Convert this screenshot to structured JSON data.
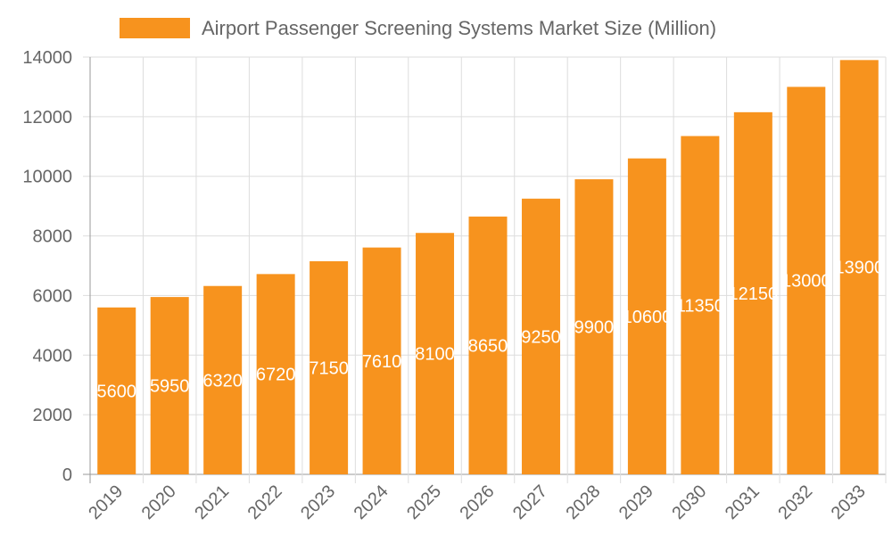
{
  "chart_data": {
    "type": "bar",
    "title": "",
    "xlabel": "",
    "ylabel": "",
    "categories": [
      "2019",
      "2020",
      "2021",
      "2022",
      "2023",
      "2024",
      "2025",
      "2026",
      "2027",
      "2028",
      "2029",
      "2030",
      "2031",
      "2032",
      "2033"
    ],
    "series": [
      {
        "name": "Airport Passenger Screening Systems Market Size (Million)",
        "values": [
          5600,
          5950,
          6320,
          6720,
          7150,
          7610,
          8100,
          8650,
          9250,
          9900,
          10600,
          11350,
          12150,
          13000,
          13900
        ],
        "color": "#F7931E"
      }
    ],
    "ylim": [
      0,
      14000
    ],
    "yticks": [
      0,
      2000,
      4000,
      6000,
      8000,
      10000,
      12000,
      14000
    ],
    "grid": true,
    "legend": "top",
    "data_labels": true,
    "data_label_color": "#ffffff"
  }
}
